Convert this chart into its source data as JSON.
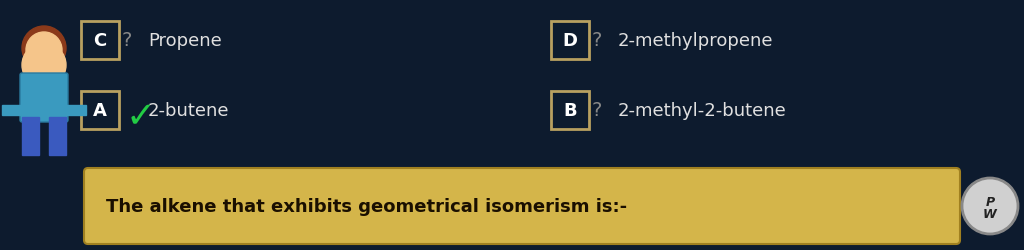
{
  "background_color": "#0d1b2e",
  "question_text": "The alkene that exhibits geometrical isomerism is:-",
  "question_box_color": "#d4b54a",
  "question_text_color": "#1a0f00",
  "options": [
    {
      "label": "A",
      "text": "2-butene",
      "correct": true
    },
    {
      "label": "B",
      "text": "2-methyl-2-butene",
      "correct": false
    },
    {
      "label": "C",
      "text": "Propene",
      "correct": false
    },
    {
      "label": "D",
      "text": "2-methylpropene",
      "correct": false
    }
  ],
  "option_box_bg": "#0d1b2e",
  "option_box_border": "#b8a060",
  "option_label_color": "#ffffff",
  "option_text_color": "#e0e0e0",
  "checkmark_color": "#22cc44",
  "pw_badge_bg": "#d0d0d0",
  "pw_badge_border": "#888888",
  "pw_text_color": "#222222",
  "question_font_size": 13,
  "option_font_size": 13,
  "label_font_size": 13
}
